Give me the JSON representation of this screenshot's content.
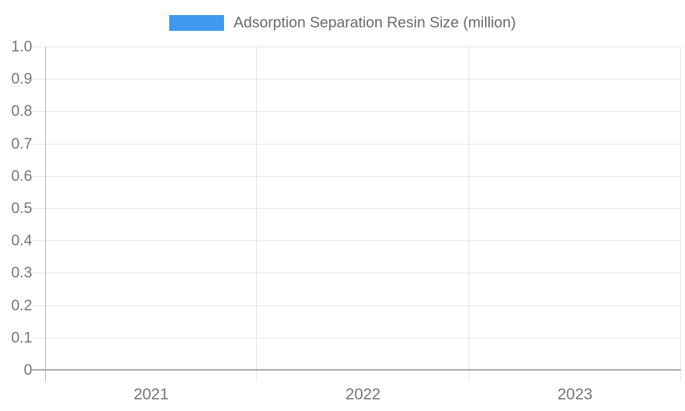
{
  "legend": {
    "label": "Adsorption Separation Resin Size (million)",
    "swatch_color": "#3d9aee"
  },
  "chart_data": {
    "type": "bar",
    "title": "Adsorption Separation Resin Size (million)",
    "categories": [
      "2021",
      "2022",
      "2023"
    ],
    "series": [
      {
        "name": "Adsorption Separation Resin Size (million)",
        "values": [
          null,
          null,
          null
        ]
      }
    ],
    "xlabel": "",
    "ylabel": "",
    "ylim": [
      0,
      1.0
    ],
    "y_ticks": [
      "1.0",
      "0.9",
      "0.8",
      "0.7",
      "0.6",
      "0.5",
      "0.4",
      "0.3",
      "0.2",
      "0.1",
      "0"
    ],
    "grid": true,
    "legend_position": "top-center",
    "bars_rendered": false
  },
  "colors": {
    "background": "#ffffff",
    "gridline": "#e2e2e2",
    "y_axis_line": "#ababab",
    "x_axis_line": "#a3a3a3",
    "tick_label": "#757575",
    "legend_text": "#6b6b6b",
    "series_blue": "#3d9aee"
  }
}
